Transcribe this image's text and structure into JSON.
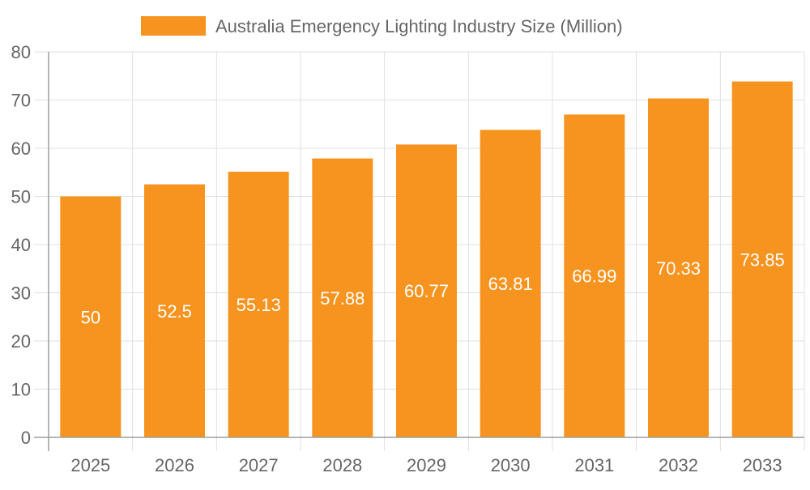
{
  "chart_data": {
    "type": "bar",
    "categories": [
      "2025",
      "2026",
      "2027",
      "2028",
      "2029",
      "2030",
      "2031",
      "2032",
      "2033"
    ],
    "series": [
      {
        "name": "Australia Emergency Lighting Industry Size (Million)",
        "values": [
          50,
          52.5,
          55.13,
          57.88,
          60.77,
          63.81,
          66.99,
          70.33,
          73.85
        ]
      }
    ],
    "data_labels": [
      "50",
      "52.5",
      "55.13",
      "57.88",
      "60.77",
      "63.81",
      "66.99",
      "70.33",
      "73.85"
    ],
    "title": "",
    "xlabel": "",
    "ylabel": "",
    "ylim": [
      0,
      80
    ],
    "yticks": [
      "0",
      "10",
      "20",
      "30",
      "40",
      "50",
      "60",
      "70",
      "80"
    ],
    "grid": true,
    "legend_position": "top",
    "colors": {
      "bar": "#f7941f",
      "grid": "#e0e0e0",
      "axis": "#9e9e9e",
      "text": "#666666",
      "data_label": "#ffffff"
    }
  }
}
